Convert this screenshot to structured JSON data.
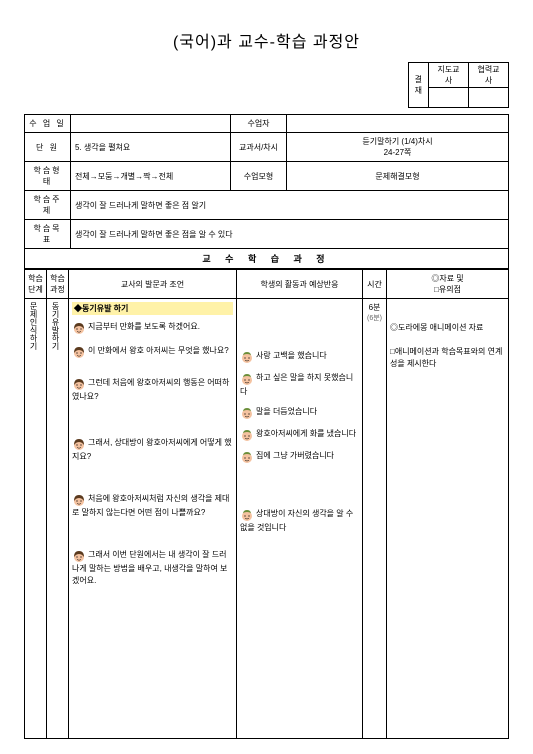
{
  "title": "(국어)과 교수-학습 과정안",
  "sign": {
    "v": "결\n재",
    "h1": "지도교사",
    "h2": "협력교사"
  },
  "info": {
    "date_label": "수 업 일",
    "date_val": "",
    "teacher_label": "수업자",
    "teacher_val": "",
    "unit_label": "단    원",
    "unit_val": "5. 생각을 펼쳐요",
    "textbook_label": "교과서/차시",
    "textbook_val": "듣기말하기 (1/4)차시\n24-27쪽",
    "form_label": "학습형태",
    "form_val": "전체→모둠→개별→짝→전체",
    "model_label": "수업모형",
    "model_val": "문제해결모형",
    "topic_label": "학습주제",
    "topic_val": "생각이 잘 드러나게 말하면 좋은 점 알기",
    "goal_label": "학습목표",
    "goal_val": "생각이 잘 드러나게 말하면 좋은 점을 알 수 있다"
  },
  "process_title": "교 수 학 습 과 정",
  "headers": {
    "stage": "학습\n단계",
    "proc": "학습\n과정",
    "teacher": "교사의 발문과 조언",
    "student": "학생의 활동과 예상반응",
    "time": "시간",
    "note": "◎자료 및\n□유의점"
  },
  "stage1": "문제인식하기",
  "proc1": "동기유발하기",
  "section": "◆동기유발 하기",
  "t_lines": [
    "지금부터 만화를 보도록 하겠어요.",
    "이 만화에서 왕호 아저씨는 무엇을 했나요?",
    "그런데 처음에 왕호아저씨의 행동은 어떠하였나요?",
    "그래서, 상대방이 왕호아저씨에게 어떻게 했지요?",
    "처음에 왕호아저씨처럼 자신의 생각을 제대로 말하지 않는다면 어떤 점이 나쁠까요?",
    "그래서 이번 단원에서는 내 생각이 잘 드러나게 말하는 방법을 배우고, 내생각을 말하여 보겠어요."
  ],
  "s_lines": [
    "사랑 고백을 했습니다",
    "하고 싶은 말을 하지 못했습니다",
    "말을 더듬었습니다",
    "왕호아저씨에게 화를 냈습니다",
    "집에 그냥 가버렸습니다",
    "상대방이 자신의 생각을 알 수 없을 것입니다"
  ],
  "time_val": "6분",
  "time_sub": "(6분)",
  "notes": [
    "◎도라에몽 애니메이션 자료",
    "□애니메이션과 학습목표와의 연계성을 제시한다"
  ],
  "colors": {
    "teacher_face": "#f4c2a0",
    "teacher_hair": "#5b3a1e",
    "student_face": "#f4c2a0",
    "student_hair": "#6b8e3a",
    "highlight": "#fff2a8"
  }
}
